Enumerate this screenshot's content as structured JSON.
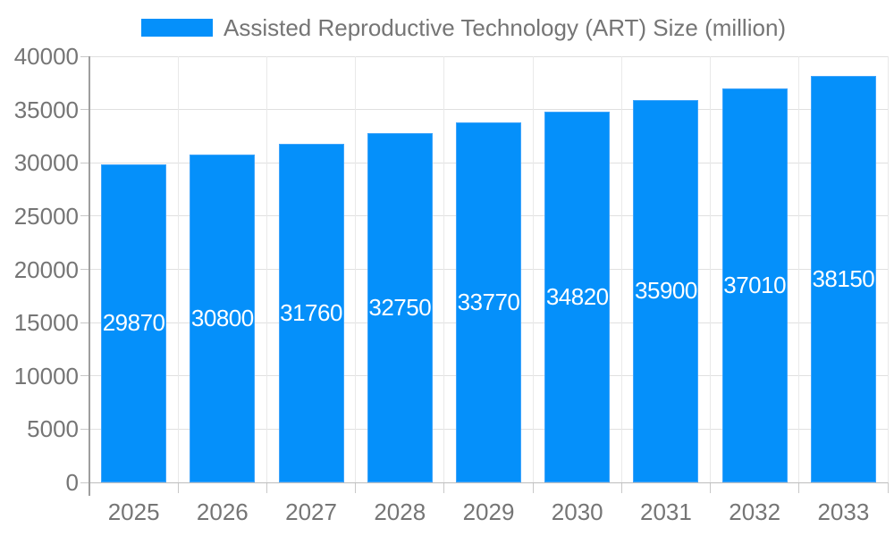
{
  "chart_data": {
    "type": "bar",
    "title": "Assisted Reproductive Technology (ART) Size (million)",
    "legend": {
      "position": "top",
      "label": "Assisted Reproductive Technology (ART) Size (million)"
    },
    "categories": [
      "2025",
      "2026",
      "2027",
      "2028",
      "2029",
      "2030",
      "2031",
      "2032",
      "2033"
    ],
    "values": [
      29870,
      30800,
      31760,
      32750,
      33770,
      34820,
      35900,
      37010,
      38150
    ],
    "xlabel": "",
    "ylabel": "",
    "ylim": [
      0,
      40000
    ],
    "yticks": [
      0,
      5000,
      10000,
      15000,
      20000,
      25000,
      30000,
      35000,
      40000
    ],
    "grid": true,
    "bar_labels_visible": true,
    "colors": {
      "bar": "#0590fa",
      "bar_border": "#3fa4fb",
      "bar_label": "#ffffff",
      "axis_text": "#757575",
      "legend_text": "#757575",
      "h_gridline": "#e0e0e0",
      "v_gridline": "#e9e9e9",
      "axis_line": "#9e9e9e",
      "baseline": "#bdbdbd",
      "tick": "#c8c8c8",
      "background": "#ffffff"
    }
  }
}
